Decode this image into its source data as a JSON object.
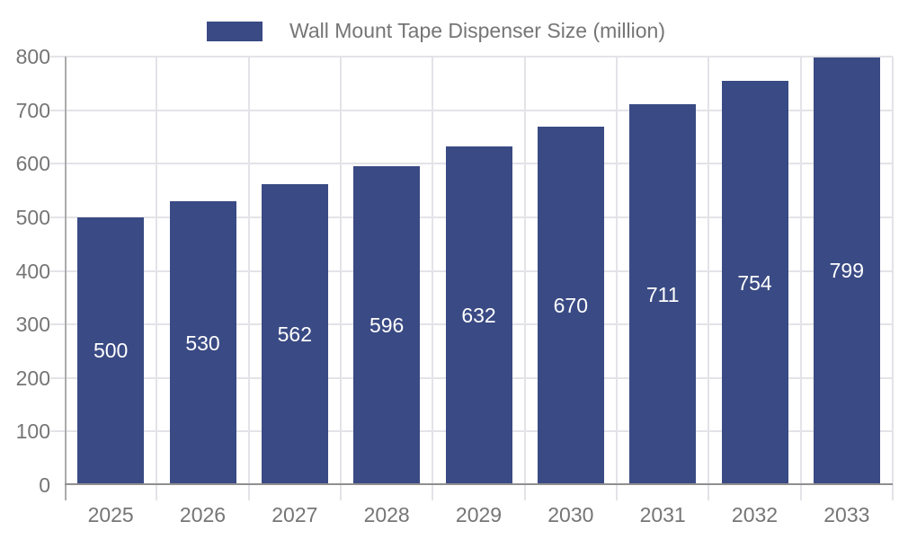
{
  "legend": {
    "label": "Wall Mount Tape Dispenser Size (million)"
  },
  "colors": {
    "bar": "#3a4a84",
    "grid": "#e3e3e8",
    "axis": "#ababab",
    "baseline": "#8f8f8f",
    "text": "#757575",
    "value_label": "#ffffff"
  },
  "chart_data": {
    "type": "bar",
    "title": "Wall Mount Tape Dispenser Size (million)",
    "categories": [
      "2025",
      "2026",
      "2027",
      "2028",
      "2029",
      "2030",
      "2031",
      "2032",
      "2033"
    ],
    "values": [
      500,
      530,
      562,
      596,
      632,
      670,
      711,
      754,
      799
    ],
    "series_name": "Wall Mount Tape Dispenser Size (million)",
    "xlabel": "",
    "ylabel": "",
    "ylim": [
      0,
      800
    ],
    "yticks": [
      0,
      100,
      200,
      300,
      400,
      500,
      600,
      700,
      800
    ],
    "grid": true,
    "legend_position": "top",
    "value_label_position": "inside-center"
  }
}
